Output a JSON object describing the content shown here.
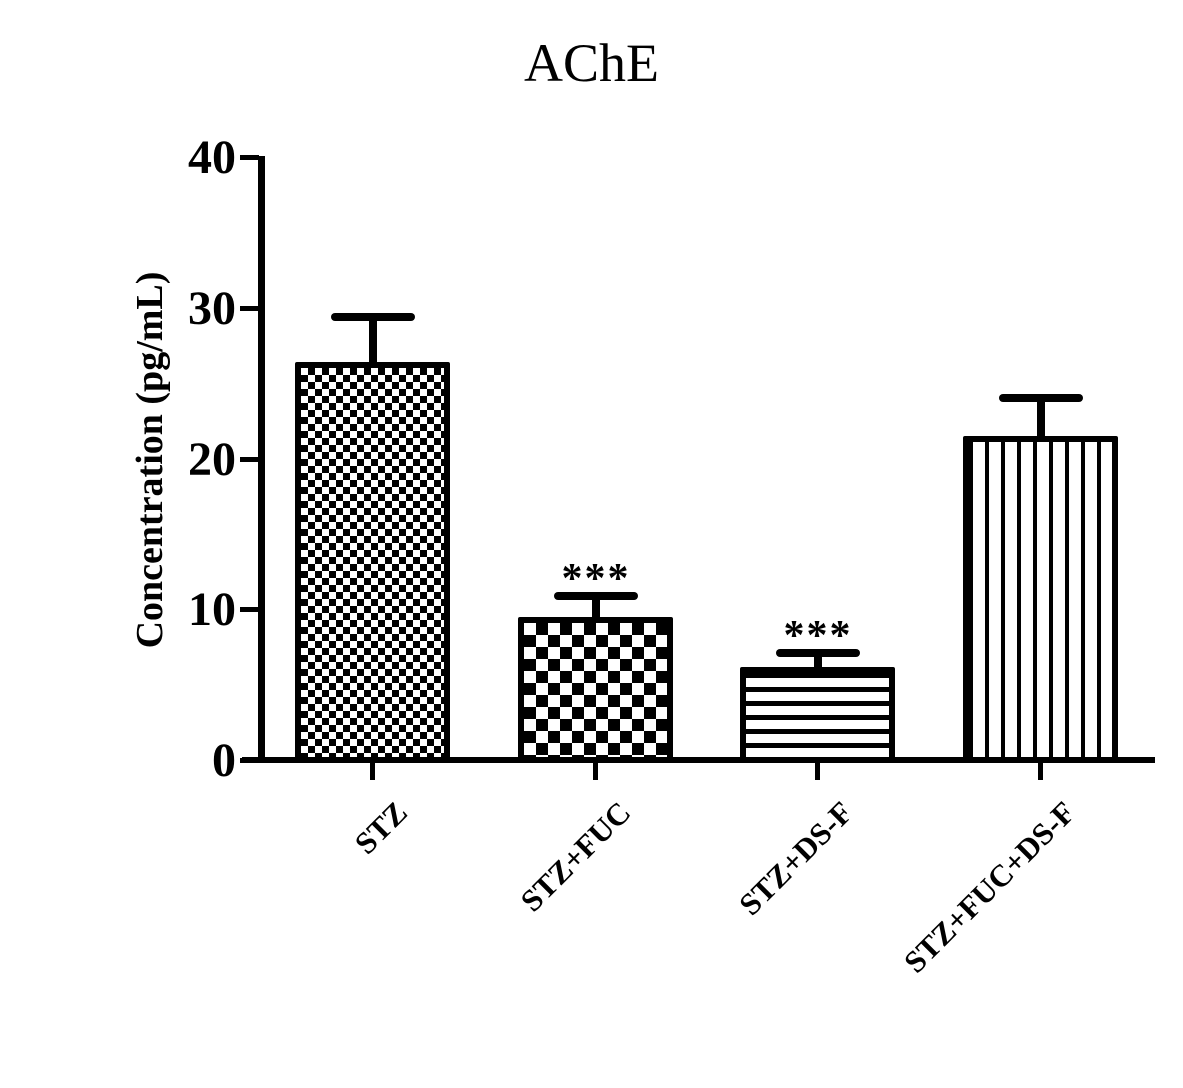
{
  "chart_data": {
    "type": "bar",
    "title": "AChE",
    "xlabel": "",
    "ylabel": "Concentration (pg/mL)",
    "categories": [
      "STZ",
      "STZ+FUC",
      "STZ+DS-F",
      "STZ+FUC+DS-F"
    ],
    "values": [
      26.4,
      9.5,
      6.2,
      21.5
    ],
    "error_sem": [
      3.0,
      1.4,
      0.9,
      2.5
    ],
    "error_tops": [
      29.4,
      10.9,
      7.1,
      24.0
    ],
    "significance": [
      "",
      "***",
      "***",
      ""
    ],
    "bar_patterns": [
      "checker-fine",
      "checker-coarse",
      "lines-horizontal",
      "lines-vertical"
    ],
    "yticks": [
      0,
      10,
      20,
      30,
      40
    ],
    "ylim": [
      0,
      40
    ],
    "grid": false,
    "legend_position": "none",
    "bar_color": "#000000",
    "background_color": "#ffffff"
  }
}
